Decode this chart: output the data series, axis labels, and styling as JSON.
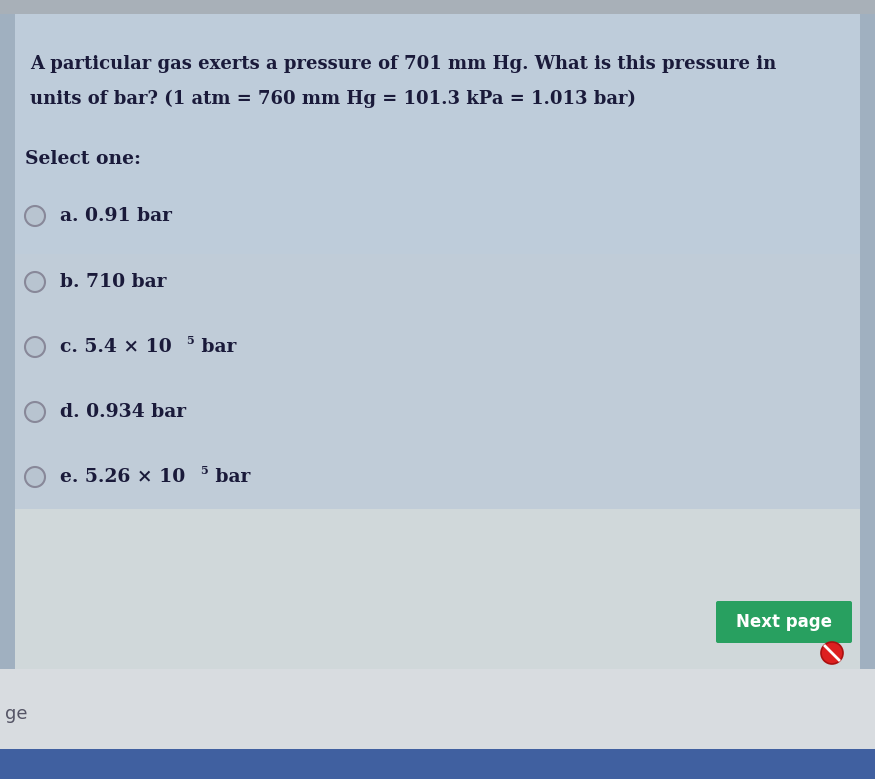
{
  "bg_outer": "#b8c8d8",
  "bg_top_strip": "#c0c8d0",
  "bg_main_content": "#c0ccd8",
  "bg_lower": "#d8dce0",
  "bg_very_bottom": "#e8ece8",
  "blue_strip": "#4060a0",
  "question_line1": "A particular gas exerts a pressure of 701 mm Hg. What is this pressure in",
  "question_line2": "units of bar? (1 atm = 760 mm Hg = 101.3 kPa = 1.013 bar)",
  "select_label": "Select one:",
  "option_a": "a. 0.91 bar",
  "option_b": "b. 710 bar",
  "option_c_pre": "c. 5.4 × 10",
  "option_c_sup": "5",
  "option_c_post": " bar",
  "option_d": "d. 0.934 bar",
  "option_e_pre": "e. 5.26 × 10",
  "option_e_sup": "5",
  "option_e_post": " bar",
  "text_color": "#1a1a3a",
  "radio_edge_color": "#888899",
  "radio_face_color": "#b8c4d0",
  "next_page_bg": "#28a060",
  "next_page_text": "Next page",
  "next_page_text_color": "#ffffff",
  "red_icon_color": "#cc2020",
  "ge_text": "ge",
  "font_size_question": 13.0,
  "font_size_options": 13.5,
  "font_size_select": 13.5
}
